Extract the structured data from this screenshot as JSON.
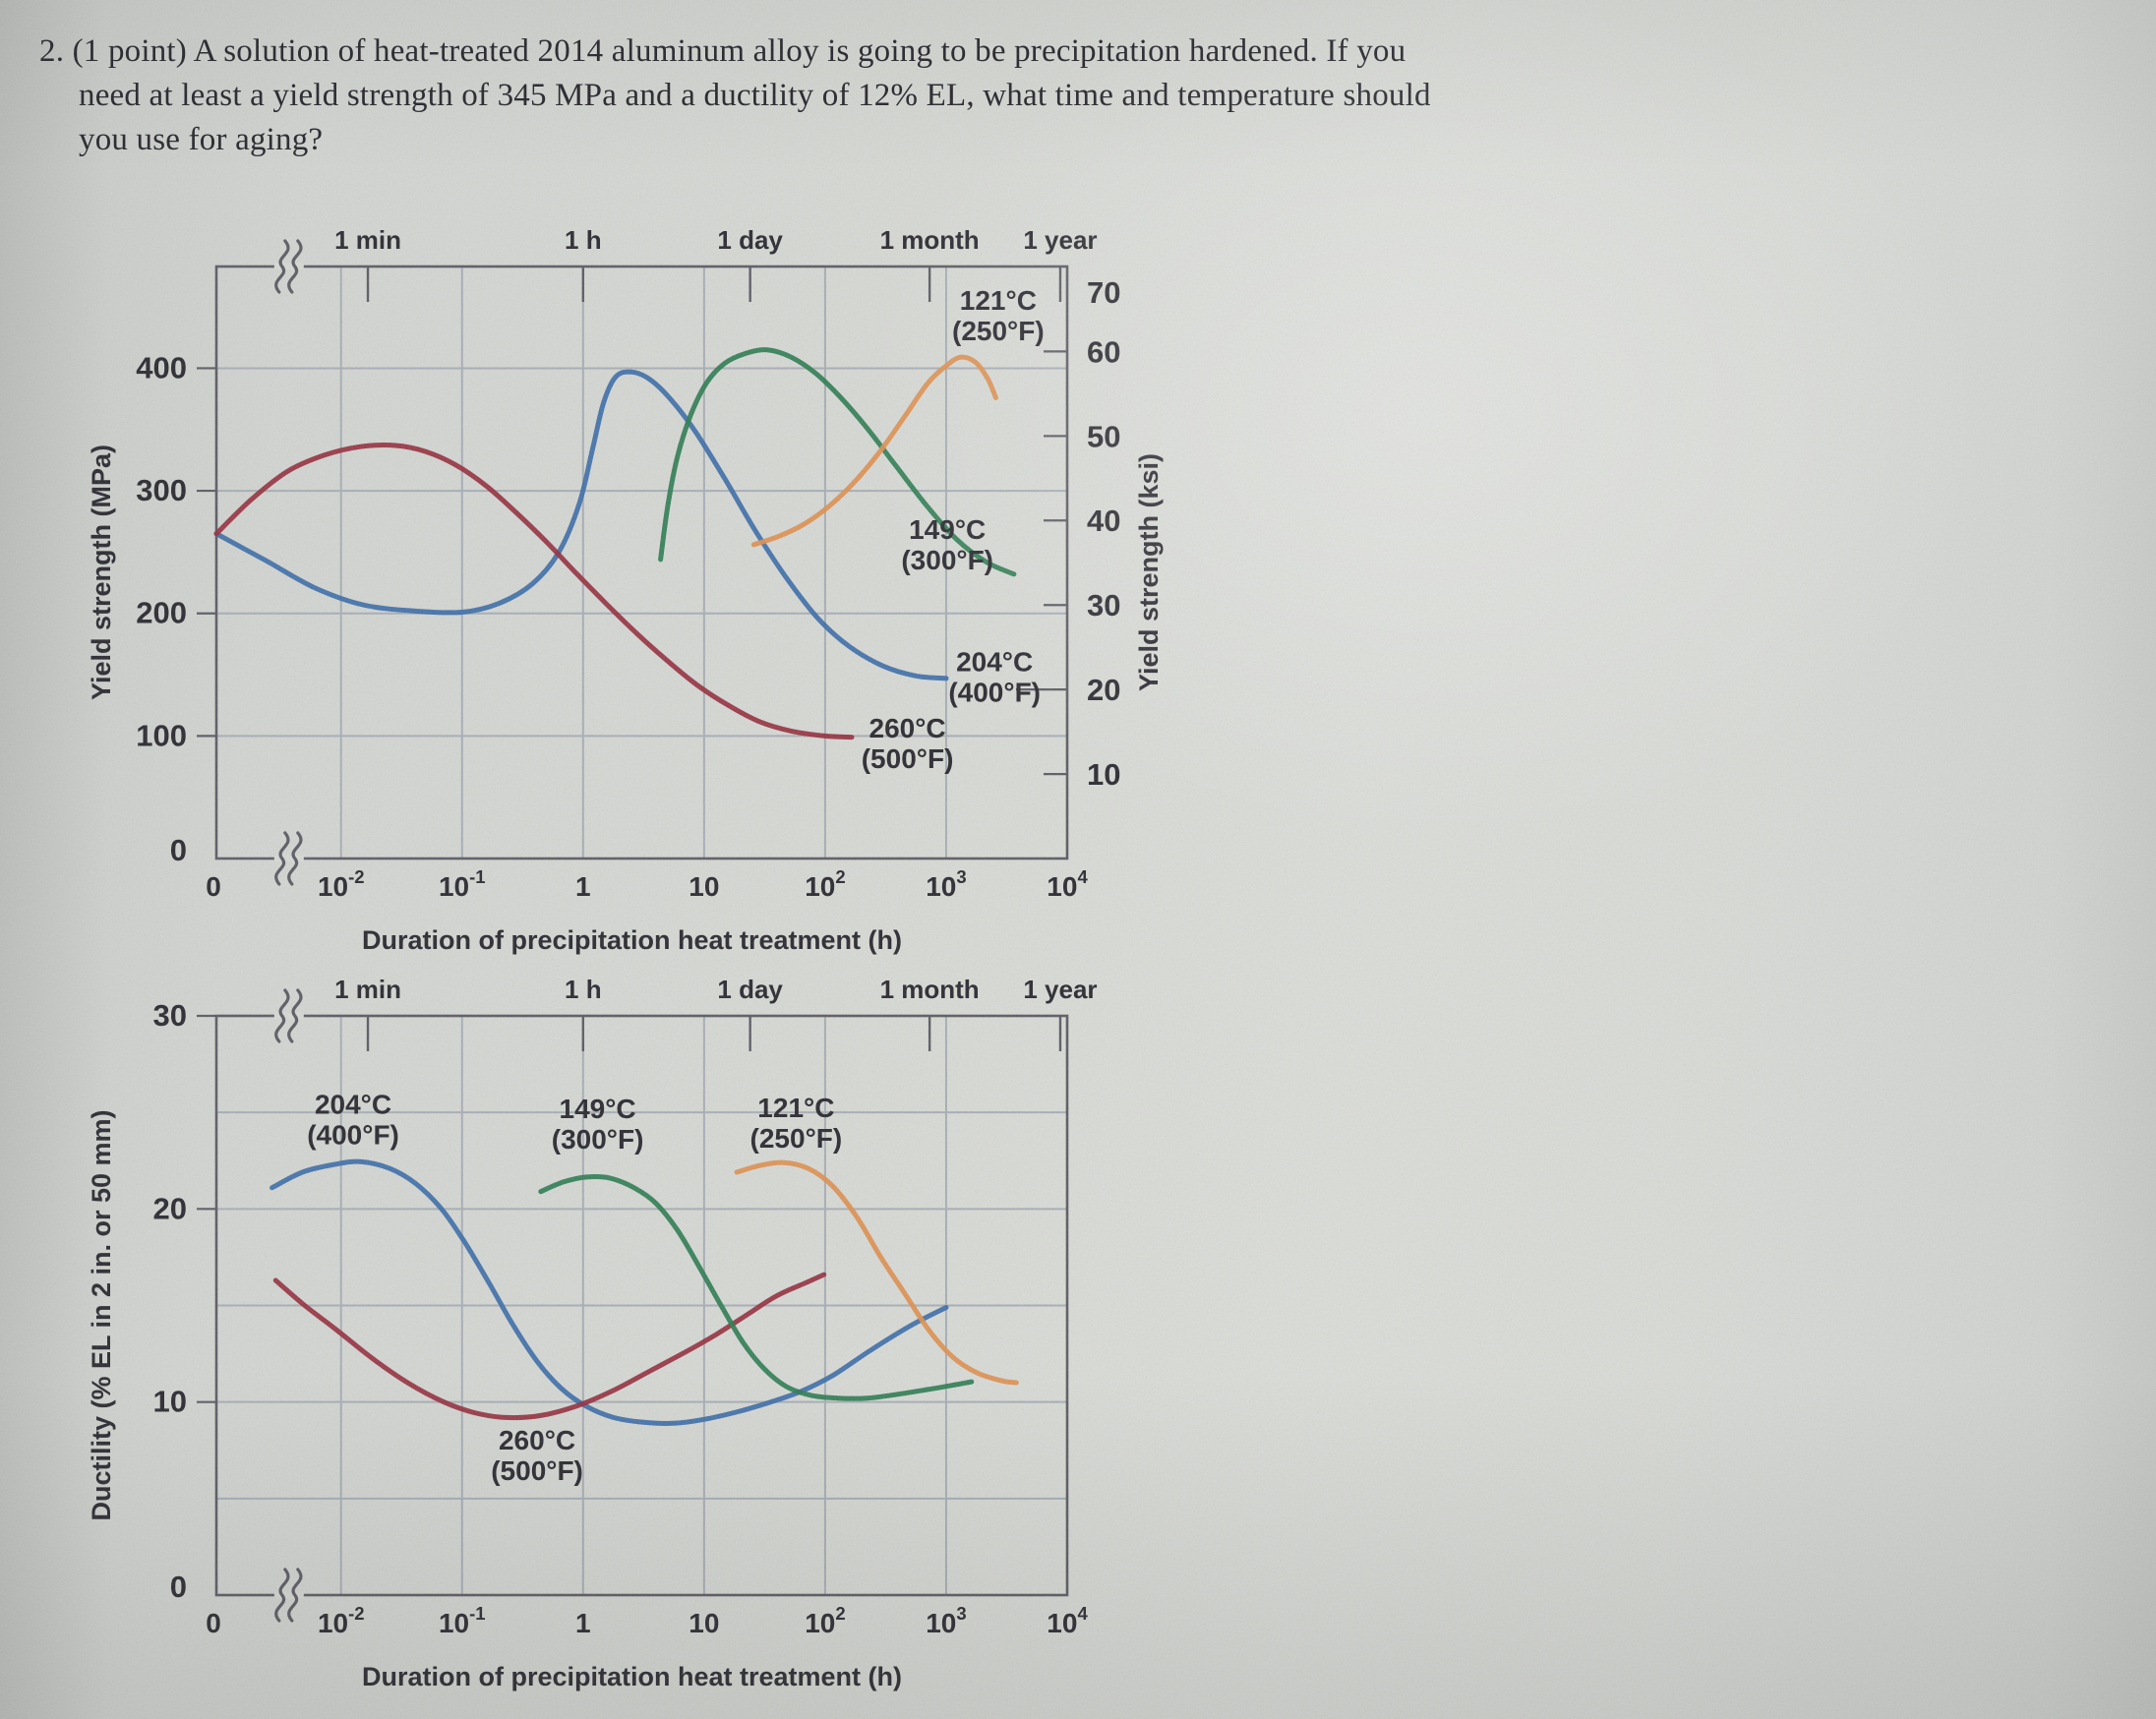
{
  "page": {
    "background": "#d6d8d4"
  },
  "question": {
    "lines": [
      "2. (1 point) A solution of heat-treated 2014 aluminum alloy is going to be precipitation hardened. If you",
      "need at least a yield strength of 345 MPa and a ductility of 12% EL, what time and temperature should",
      "you use for aging?"
    ]
  },
  "colors": {
    "axis": "#5d5d64",
    "grid": "#a8aeb5",
    "text": "#2c2c32",
    "series_121C": "#dd9050",
    "series_149C": "#2e7d53",
    "series_204C": "#3d6ea8",
    "series_260C": "#96303f"
  },
  "chart_data": [
    {
      "id": "yield-strength",
      "type": "line",
      "x_axis": {
        "label": "Duration of precipitation heat treatment (h)",
        "scale": "log",
        "unit_note": "u = log10(hours)+2; left border u=-1.03 is t=0 before axis break",
        "ticks": [
          {
            "u": -1.03,
            "label": "0"
          },
          {
            "u": 0,
            "label": "10^-2"
          },
          {
            "u": 1,
            "label": "10^-1"
          },
          {
            "u": 2,
            "label": "1"
          },
          {
            "u": 3,
            "label": "10"
          },
          {
            "u": 4,
            "label": "10^2"
          },
          {
            "u": 5,
            "label": "10^3"
          },
          {
            "u": 6,
            "label": "10^4"
          }
        ],
        "grid_u": [
          0,
          1,
          2,
          3,
          4,
          5
        ],
        "break_u": -0.43
      },
      "y_left": {
        "label": "Yield strength (MPa)",
        "range": [
          0,
          483
        ],
        "ticks": [
          {
            "v": 0,
            "label": "0"
          },
          {
            "v": 100,
            "label": "100"
          },
          {
            "v": 200,
            "label": "200"
          },
          {
            "v": 300,
            "label": "300"
          },
          {
            "v": 400,
            "label": "400"
          }
        ],
        "grid": [
          100,
          200,
          300,
          400
        ]
      },
      "y_right": {
        "label": "Yield strength (ksi)",
        "ticks": [
          {
            "v": 68.9,
            "label": "10"
          },
          {
            "v": 137.9,
            "label": "20",
            "long": true
          },
          {
            "v": 206.8,
            "label": "30"
          },
          {
            "v": 275.8,
            "label": "40"
          },
          {
            "v": 344.7,
            "label": "50"
          },
          {
            "v": 413.7,
            "label": "60"
          }
        ],
        "corner_label": {
          "v": 462,
          "label": "70"
        }
      },
      "time_markers": [
        {
          "label": "1 min",
          "hours": 0.0166667
        },
        {
          "label": "1 h",
          "hours": 1
        },
        {
          "label": "1 day",
          "hours": 24
        },
        {
          "label": "1 month",
          "hours": 730
        },
        {
          "label": "1 year",
          "hours": 8766
        }
      ],
      "series": [
        {
          "name": "204°C (400°F)",
          "color_key": "series_204C",
          "points": [
            [
              -1.03,
              265
            ],
            [
              -0.62,
              243
            ],
            [
              -0.22,
              221
            ],
            [
              0.18,
              207
            ],
            [
              0.6,
              202
            ],
            [
              1.0,
              201
            ],
            [
              1.3,
              208
            ],
            [
              1.58,
              224
            ],
            [
              1.8,
              250
            ],
            [
              1.97,
              290
            ],
            [
              2.08,
              335
            ],
            [
              2.17,
              372
            ],
            [
              2.27,
              393
            ],
            [
              2.4,
              397
            ],
            [
              2.55,
              391
            ],
            [
              2.73,
              374
            ],
            [
              2.93,
              348
            ],
            [
              3.17,
              310
            ],
            [
              3.42,
              268
            ],
            [
              3.68,
              229
            ],
            [
              3.94,
              196
            ],
            [
              4.2,
              173
            ],
            [
              4.48,
              157
            ],
            [
              4.75,
              149
            ],
            [
              5.0,
              147
            ]
          ]
        },
        {
          "name": "260°C (500°F)",
          "color_key": "series_260C",
          "points": [
            [
              -1.03,
              265
            ],
            [
              -0.74,
              293
            ],
            [
              -0.44,
              316
            ],
            [
              -0.14,
              329
            ],
            [
              0.16,
              336
            ],
            [
              0.45,
              337
            ],
            [
              0.7,
              332
            ],
            [
              0.95,
              321
            ],
            [
              1.2,
              304
            ],
            [
              1.45,
              282
            ],
            [
              1.7,
              258
            ],
            [
              1.95,
              232
            ],
            [
              2.2,
              207
            ],
            [
              2.45,
              183
            ],
            [
              2.7,
              161
            ],
            [
              2.95,
              141
            ],
            [
              3.2,
              125
            ],
            [
              3.45,
              112
            ],
            [
              3.72,
              104
            ],
            [
              4.0,
              100
            ],
            [
              4.22,
              99
            ]
          ]
        },
        {
          "name": "149°C (300°F)",
          "color_key": "series_149C",
          "points": [
            [
              2.64,
              244
            ],
            [
              2.7,
              288
            ],
            [
              2.78,
              328
            ],
            [
              2.89,
              362
            ],
            [
              3.02,
              388
            ],
            [
              3.17,
              404
            ],
            [
              3.34,
              412
            ],
            [
              3.52,
              415
            ],
            [
              3.72,
              409
            ],
            [
              3.92,
              396
            ],
            [
              4.12,
              377
            ],
            [
              4.34,
              352
            ],
            [
              4.58,
              321
            ],
            [
              4.83,
              289
            ],
            [
              5.08,
              261
            ],
            [
              5.33,
              242
            ],
            [
              5.56,
              232
            ]
          ]
        },
        {
          "name": "121°C (250°F)",
          "color_key": "series_121C",
          "points": [
            [
              3.41,
              256
            ],
            [
              3.62,
              263
            ],
            [
              3.83,
              273
            ],
            [
              4.04,
              288
            ],
            [
              4.25,
              308
            ],
            [
              4.46,
              333
            ],
            [
              4.66,
              361
            ],
            [
              4.85,
              388
            ],
            [
              5.0,
              402
            ],
            [
              5.12,
              409
            ],
            [
              5.24,
              405
            ],
            [
              5.34,
              392
            ],
            [
              5.41,
              376
            ]
          ]
        }
      ],
      "annotations": [
        {
          "lines": [
            "121°C",
            "(250°F)"
          ],
          "u": 5.43,
          "v": 455
        },
        {
          "lines": [
            "149°C",
            "(300°F)"
          ],
          "u": 5.01,
          "v": 268
        },
        {
          "lines": [
            "204°C",
            "(400°F)"
          ],
          "u": 5.4,
          "v": 160
        },
        {
          "lines": [
            "260°C",
            "(500°F)"
          ],
          "u": 4.68,
          "v": 106
        }
      ]
    },
    {
      "id": "ductility",
      "type": "line",
      "x_axis": {
        "label": "Duration of precipitation heat treatment (h)",
        "scale": "log",
        "unit_note": "u = log10(hours)+2; left border u=-1.03 is t=0 before axis break",
        "ticks": [
          {
            "u": -1.03,
            "label": "0"
          },
          {
            "u": 0,
            "label": "10^-2"
          },
          {
            "u": 1,
            "label": "10^-1"
          },
          {
            "u": 2,
            "label": "1"
          },
          {
            "u": 3,
            "label": "10"
          },
          {
            "u": 4,
            "label": "10^2"
          },
          {
            "u": 5,
            "label": "10^3"
          },
          {
            "u": 6,
            "label": "10^4"
          }
        ],
        "grid_u": [
          0,
          1,
          2,
          3,
          4,
          5
        ],
        "break_u": -0.43
      },
      "y_left": {
        "label": "Ductility (% EL in 2 in. or 50 mm)",
        "range": [
          0,
          30
        ],
        "ticks": [
          {
            "v": 0,
            "label": "0"
          },
          {
            "v": 10,
            "label": "10"
          },
          {
            "v": 20,
            "label": "20"
          },
          {
            "v": 30,
            "label": "30"
          }
        ],
        "grid": [
          5,
          10,
          15,
          20,
          25
        ]
      },
      "time_markers": [
        {
          "label": "1 min",
          "hours": 0.0166667
        },
        {
          "label": "1 h",
          "hours": 1
        },
        {
          "label": "1 day",
          "hours": 24
        },
        {
          "label": "1 month",
          "hours": 730
        },
        {
          "label": "1 year",
          "hours": 8766
        }
      ],
      "series": [
        {
          "name": "204°C (400°F)",
          "color_key": "series_204C",
          "points": [
            [
              -0.57,
              21.1
            ],
            [
              -0.32,
              21.9
            ],
            [
              -0.06,
              22.3
            ],
            [
              0.16,
              22.45
            ],
            [
              0.4,
              22.1
            ],
            [
              0.62,
              21.3
            ],
            [
              0.83,
              20.0
            ],
            [
              1.02,
              18.3
            ],
            [
              1.22,
              16.2
            ],
            [
              1.42,
              14.0
            ],
            [
              1.62,
              12.1
            ],
            [
              1.82,
              10.7
            ],
            [
              2.02,
              9.8
            ],
            [
              2.25,
              9.2
            ],
            [
              2.5,
              8.95
            ],
            [
              2.75,
              8.9
            ],
            [
              3.0,
              9.1
            ],
            [
              3.28,
              9.5
            ],
            [
              3.55,
              10.0
            ],
            [
              3.8,
              10.55
            ],
            [
              4.07,
              11.4
            ],
            [
              4.38,
              12.7
            ],
            [
              4.72,
              14.0
            ],
            [
              5.0,
              14.9
            ]
          ]
        },
        {
          "name": "260°C (500°F)",
          "color_key": "series_260C",
          "points": [
            [
              -0.54,
              16.3
            ],
            [
              -0.3,
              15.0
            ],
            [
              -0.05,
              13.8
            ],
            [
              0.25,
              12.3
            ],
            [
              0.55,
              11.0
            ],
            [
              0.85,
              10.0
            ],
            [
              1.1,
              9.45
            ],
            [
              1.36,
              9.2
            ],
            [
              1.65,
              9.3
            ],
            [
              1.95,
              9.8
            ],
            [
              2.25,
              10.6
            ],
            [
              2.55,
              11.6
            ],
            [
              2.85,
              12.6
            ],
            [
              3.1,
              13.5
            ],
            [
              3.35,
              14.5
            ],
            [
              3.6,
              15.5
            ],
            [
              3.85,
              16.2
            ],
            [
              3.99,
              16.6
            ]
          ]
        },
        {
          "name": "149°C (300°F)",
          "color_key": "series_149C",
          "points": [
            [
              1.65,
              20.9
            ],
            [
              1.84,
              21.4
            ],
            [
              2.03,
              21.65
            ],
            [
              2.22,
              21.6
            ],
            [
              2.42,
              21.1
            ],
            [
              2.6,
              20.3
            ],
            [
              2.78,
              18.9
            ],
            [
              2.96,
              17.0
            ],
            [
              3.14,
              15.0
            ],
            [
              3.32,
              13.1
            ],
            [
              3.5,
              11.7
            ],
            [
              3.68,
              10.8
            ],
            [
              3.88,
              10.35
            ],
            [
              4.1,
              10.2
            ],
            [
              4.35,
              10.2
            ],
            [
              4.6,
              10.4
            ],
            [
              4.85,
              10.65
            ],
            [
              5.08,
              10.9
            ],
            [
              5.21,
              11.05
            ]
          ]
        },
        {
          "name": "121°C (250°F)",
          "color_key": "series_121C",
          "points": [
            [
              3.27,
              21.9
            ],
            [
              3.46,
              22.25
            ],
            [
              3.66,
              22.4
            ],
            [
              3.86,
              22.1
            ],
            [
              4.06,
              21.2
            ],
            [
              4.26,
              19.6
            ],
            [
              4.46,
              17.5
            ],
            [
              4.66,
              15.6
            ],
            [
              4.86,
              13.7
            ],
            [
              5.06,
              12.3
            ],
            [
              5.26,
              11.5
            ],
            [
              5.46,
              11.1
            ],
            [
              5.58,
              11.0
            ]
          ]
        }
      ],
      "annotations": [
        {
          "lines": [
            "204°C",
            "(400°F)"
          ],
          "u": 0.1,
          "v": 25.4
        },
        {
          "lines": [
            "149°C",
            "(300°F)"
          ],
          "u": 2.12,
          "v": 25.15
        },
        {
          "lines": [
            "121°C",
            "(250°F)"
          ],
          "u": 3.76,
          "v": 25.2
        },
        {
          "lines": [
            "260°C",
            "(500°F)"
          ],
          "u": 1.62,
          "v": 8.0
        }
      ]
    }
  ]
}
